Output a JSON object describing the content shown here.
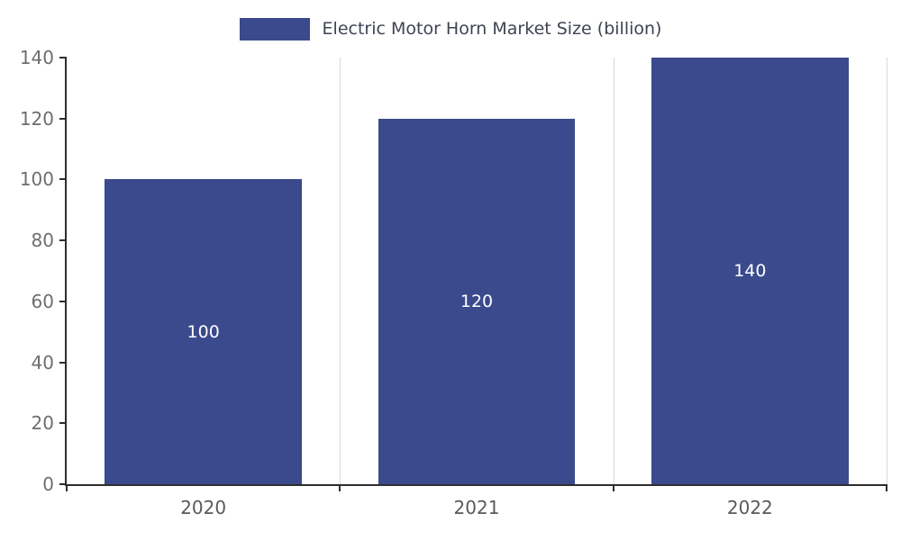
{
  "chart_data": {
    "type": "bar",
    "title": "Electric Motor Horn Market Size (billion)",
    "categories": [
      "2020",
      "2021",
      "2022"
    ],
    "values": [
      100,
      120,
      140
    ],
    "series_name": "Electric Motor Horn Market Size (billion)",
    "xlabel": "",
    "ylabel": "",
    "ylim": [
      0,
      140
    ],
    "yticks": [
      0,
      20,
      40,
      60,
      80,
      100,
      120,
      140
    ],
    "grid": "vertical-category-separators",
    "legend_position": "top-center",
    "bar_color": "#3a4a8c",
    "value_label_color": "#ffffff",
    "data_labels": [
      "100",
      "120",
      "140"
    ]
  }
}
